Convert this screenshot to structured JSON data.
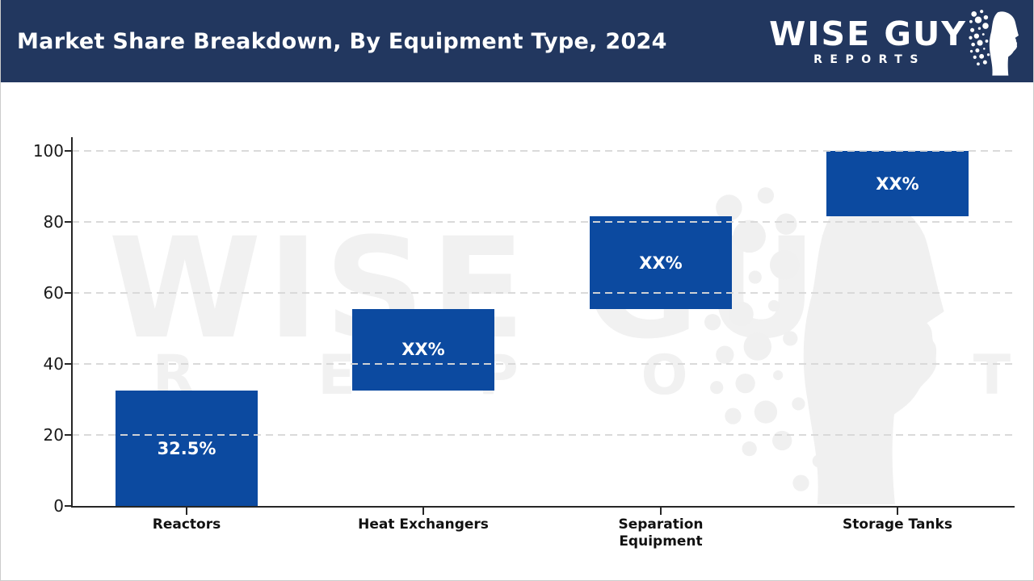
{
  "header": {
    "title": "Market Share Breakdown, By Equipment Type, 2024",
    "brand_line1": "WISE GUY",
    "brand_line2": "REPORTS"
  },
  "watermark": {
    "line1": "WISE GUY",
    "line2": "REPORTS"
  },
  "colors": {
    "header_bg": "#22375f",
    "bar": "#0c4aa0",
    "grid": "#d8d8d8",
    "axis": "#262626",
    "watermark": "#f1f1f1",
    "title_text": "#ffffff",
    "bar_label_text": "#ffffff"
  },
  "chart_data": {
    "type": "bar",
    "variant": "floating-waterfall",
    "title": "Market Share Breakdown, By Equipment Type, 2024",
    "categories": [
      "Reactors",
      "Heat Exchangers",
      "Separation Equipment",
      "Storage Tanks"
    ],
    "segments": [
      {
        "category": "Reactors",
        "start": 0,
        "end": 32.5,
        "label": "32.5%"
      },
      {
        "category": "Heat Exchangers",
        "start": 32.5,
        "end": 55.5,
        "label": "XX%"
      },
      {
        "category": "Separation Equipment",
        "start": 55.5,
        "end": 81.5,
        "label": "XX%"
      },
      {
        "category": "Storage Tanks",
        "start": 81.5,
        "end": 100,
        "label": "XX%"
      }
    ],
    "yticks": [
      0,
      20,
      40,
      60,
      80,
      100
    ],
    "ylim": [
      0,
      104
    ],
    "xlabel": "",
    "ylabel": "",
    "grid": "dashed-horizontal",
    "legend": "none"
  }
}
